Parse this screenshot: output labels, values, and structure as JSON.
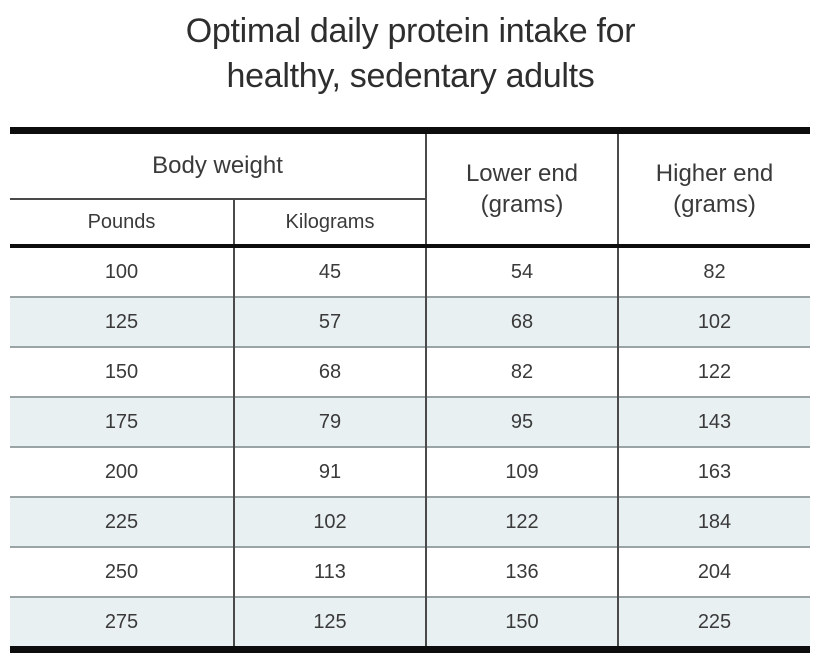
{
  "title": {
    "line1": "Optimal daily protein intake for",
    "line2": "healthy, sedentary adults"
  },
  "table": {
    "header": {
      "body_weight": "Body weight",
      "pounds": "Pounds",
      "kilograms": "Kilograms",
      "lower_end": "Lower end\n(grams)",
      "higher_end": "Higher end\n(grams)"
    }
  },
  "colors": {
    "shaded_row": "#e9f0f2",
    "thick_rule": "#0d0d0d",
    "vertical_grid": "#4a4a4a",
    "row_separator": "#9aa3a5",
    "text": "#3a3a3a"
  },
  "chart_data": {
    "type": "table",
    "title": "Optimal daily protein intake for healthy, sedentary adults",
    "columns": [
      "Body weight (Pounds)",
      "Body weight (Kilograms)",
      "Lower end (grams)",
      "Higher end (grams)"
    ],
    "rows": [
      [
        100,
        45,
        54,
        82
      ],
      [
        125,
        57,
        68,
        102
      ],
      [
        150,
        68,
        82,
        122
      ],
      [
        175,
        79,
        95,
        143
      ],
      [
        200,
        91,
        109,
        163
      ],
      [
        225,
        102,
        122,
        184
      ],
      [
        250,
        113,
        136,
        204
      ],
      [
        275,
        125,
        150,
        225
      ]
    ],
    "layout": {
      "grid": "horizontal separators between rows, vertical lines between columns",
      "row_shading": "alternating, even rows shaded",
      "legend": "none"
    }
  }
}
